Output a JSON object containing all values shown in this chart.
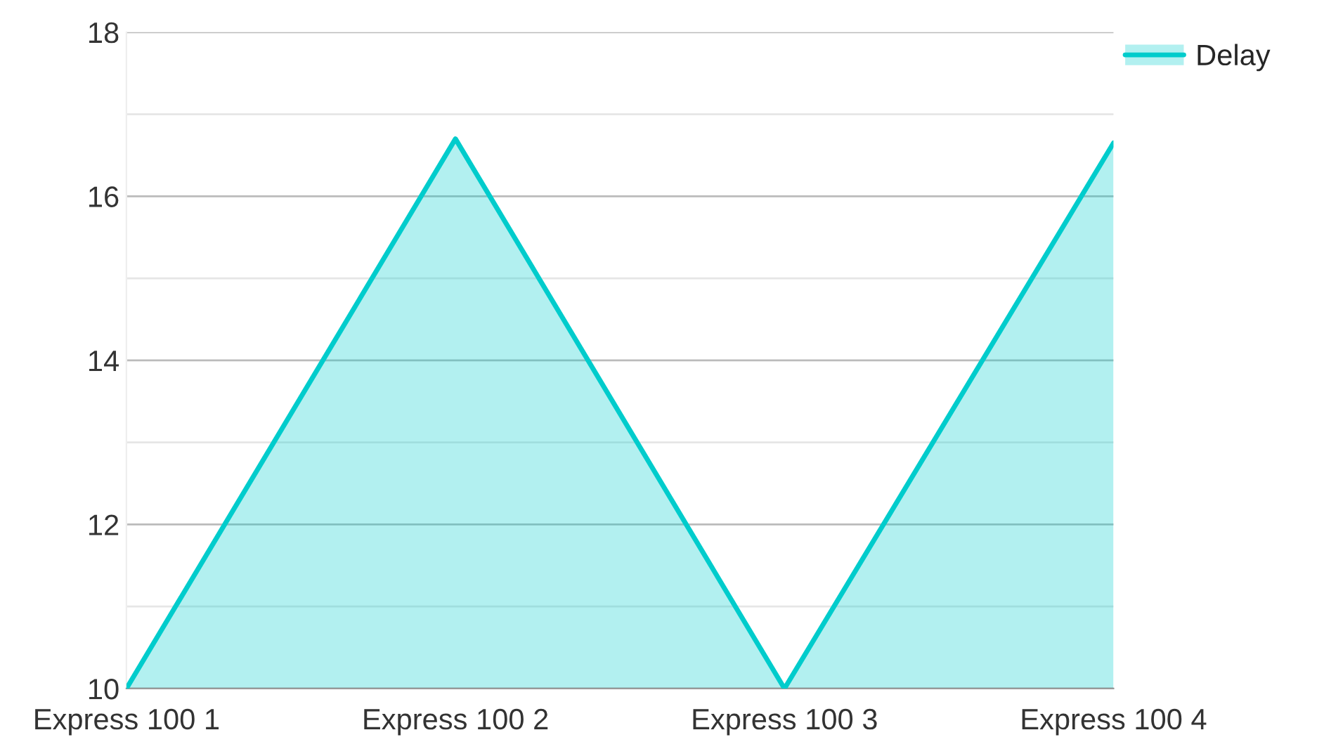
{
  "chart_data": {
    "type": "area",
    "categories": [
      "Express 100 1",
      "Express 100 2",
      "Express 100 3",
      "Express 100 4"
    ],
    "series": [
      {
        "name": "Delay",
        "color": "#00cccc",
        "values": [
          10,
          16.7,
          10,
          16.65
        ]
      }
    ],
    "ylim": [
      10,
      18
    ],
    "yticks": [
      10,
      {
        "value": 11,
        "label": null
      },
      12,
      {
        "value": 13,
        "label": null
      },
      14,
      {
        "value": 15,
        "label": null
      },
      16,
      {
        "value": 17,
        "label": null
      },
      18
    ],
    "grid": "y",
    "legend": "top right"
  }
}
